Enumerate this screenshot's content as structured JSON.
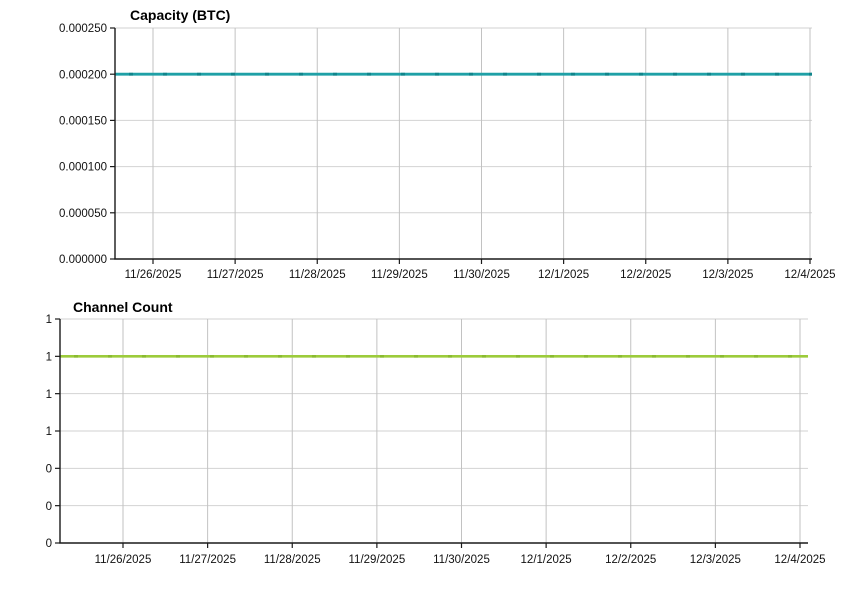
{
  "colors": {
    "background": "#FFFFFF",
    "grid_vertical": "#C2C2C2",
    "grid_horizontal": "#D2D2D2",
    "axis": "#1A1A1A",
    "tick_text": "#111111",
    "capacity_line": "#1FA0A6",
    "capacity_marker": "#0B7C83",
    "channel_line": "#9CCB3B",
    "channel_marker": "#85B52B"
  },
  "chart_data": [
    {
      "type": "line",
      "title": "Capacity (BTC)",
      "xlabel": "",
      "ylabel": "",
      "legend_position": "none",
      "grid": true,
      "x": [
        "11/26/2025",
        "11/27/2025",
        "11/28/2025",
        "11/29/2025",
        "11/30/2025",
        "12/1/2025",
        "12/2/2025",
        "12/3/2025",
        "12/4/2025"
      ],
      "series": [
        {
          "name": "Capacity (BTC)",
          "values": [
            0.0002,
            0.0002,
            0.0002,
            0.0002,
            0.0002,
            0.0002,
            0.0002,
            0.0002,
            0.0002
          ],
          "color": "#1FA0A6"
        }
      ],
      "ylim": [
        0,
        0.00025
      ],
      "yticks": [
        0,
        5e-05,
        0.0001,
        0.00015,
        0.0002,
        0.00025
      ],
      "ytick_labels": [
        "0.000000",
        "0.000050",
        "0.000100",
        "0.000150",
        "0.000200",
        "0.000250"
      ]
    },
    {
      "type": "line",
      "title": "Channel Count",
      "xlabel": "",
      "ylabel": "",
      "legend_position": "none",
      "grid": true,
      "x": [
        "11/26/2025",
        "11/27/2025",
        "11/28/2025",
        "11/29/2025",
        "11/30/2025",
        "12/1/2025",
        "12/2/2025",
        "12/3/2025",
        "12/4/2025"
      ],
      "series": [
        {
          "name": "Channel Count",
          "values": [
            1,
            1,
            1,
            1,
            1,
            1,
            1,
            1,
            1
          ],
          "color": "#9CCB3B"
        }
      ],
      "ylim": [
        0,
        1.2
      ],
      "yticks": [
        0,
        0.2,
        0.4,
        0.6,
        0.8,
        1.0,
        1.2
      ],
      "ytick_labels": [
        "0",
        "0",
        "0",
        "1",
        "1",
        "1",
        "1"
      ]
    }
  ]
}
